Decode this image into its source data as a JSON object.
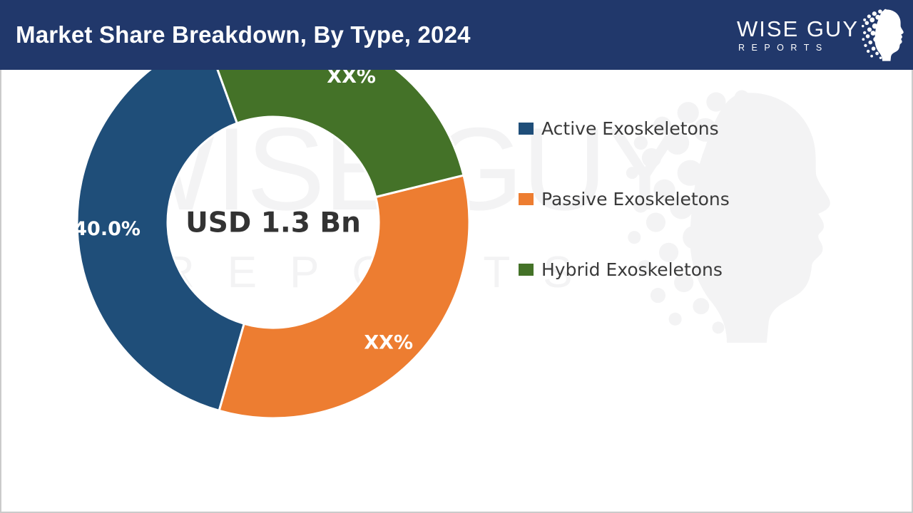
{
  "header": {
    "title": "Market Share Breakdown, By Type, 2024",
    "brand": {
      "name": "WISE GUY",
      "sub": "REPORTS"
    }
  },
  "watermark": {
    "line1": "WISE GUY",
    "line2": "REPORTS"
  },
  "chart_data": {
    "type": "pie",
    "subtype": "donut",
    "title": "Market Share Breakdown, By Type, 2024",
    "center_label": "USD 1.3 Bn",
    "start_angle_deg": 110,
    "direction": "counterclockwise",
    "legend_position": "right",
    "slices": [
      {
        "label": "Active Exoskeletons",
        "display": "40.0%",
        "value_pct": 40.0,
        "color": "#1f4e79"
      },
      {
        "label": "Passive Exoskeletons",
        "display": "XX%",
        "value_pct": 33.3,
        "color": "#ed7d31"
      },
      {
        "label": "Hybrid Exoskeletons",
        "display": "XX%",
        "value_pct": 26.7,
        "color": "#447228"
      }
    ]
  },
  "theme": {
    "background": "#ffffff",
    "header_bg": "#21386b",
    "header_text": "#ffffff",
    "watermark_color": "#f3f3f4",
    "border_color": "#cbcbcb",
    "legend_text": "#3a3a3a",
    "slice_label_text": "#ffffff",
    "center_label_text": "#333333",
    "slice_gap_color": "#ffffff"
  }
}
